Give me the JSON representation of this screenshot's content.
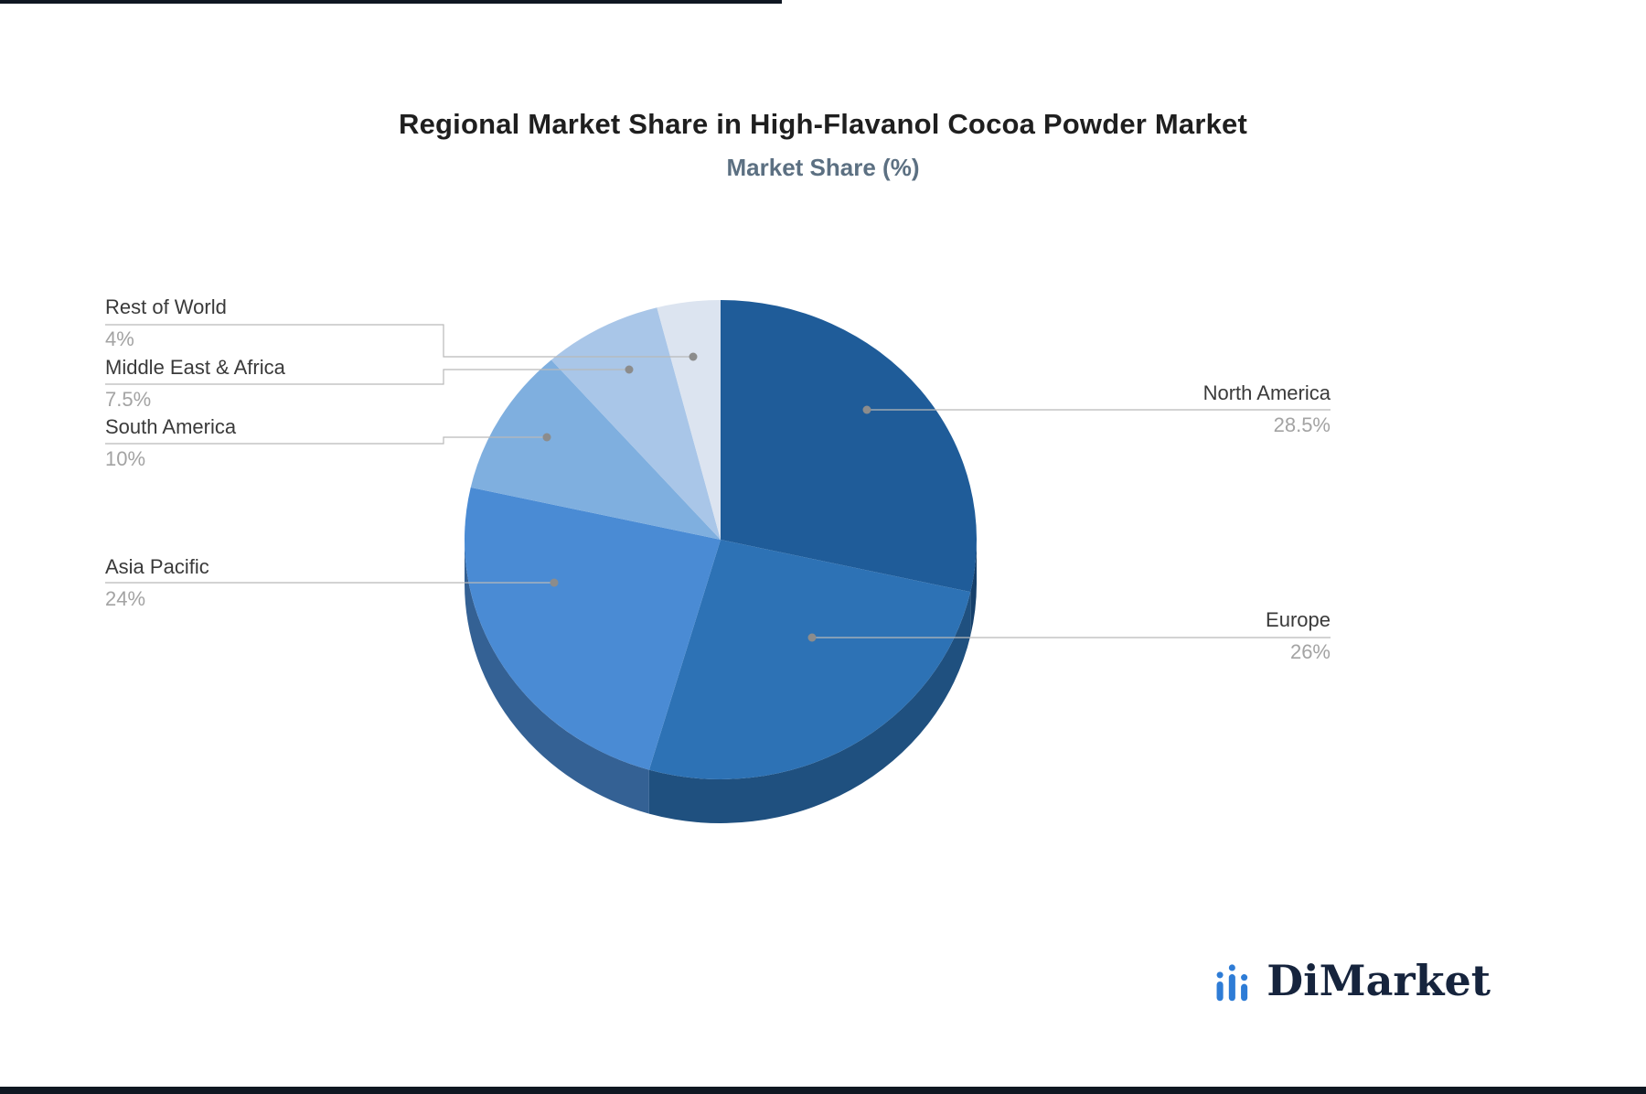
{
  "page": {
    "title": "Regional Market Share in High-Flavanol Cocoa Powder Market",
    "subtitle": "Market Share (%)"
  },
  "brand": {
    "name": "DiMarket",
    "icon": "bar-chart-icon",
    "icon_color": "#2e7cd6",
    "text_color": "#16243d"
  },
  "chart_data": {
    "type": "pie",
    "title": "Regional Market Share in High-Flavanol Cocoa Powder Market",
    "subtitle": "Market Share (%)",
    "unit": "%",
    "direction": "clockwise",
    "start_angle_deg": 0,
    "legend": "none",
    "style": {
      "effect": "3d-depth",
      "leader_line_color": "#b9b9b9",
      "leader_dot_color": "#8c8c8c",
      "name_color": "#3a3a3a",
      "value_color": "#a3a3a3"
    },
    "slices": [
      {
        "label": "North America",
        "value": 28.5,
        "display": "28.5%",
        "color": "#1f5c99"
      },
      {
        "label": "Europe",
        "value": 26,
        "display": "26%",
        "color": "#2d72b5"
      },
      {
        "label": "Asia Pacific",
        "value": 24,
        "display": "24%",
        "color": "#4a8bd4"
      },
      {
        "label": "South America",
        "value": 10,
        "display": "10%",
        "color": "#7fafdf"
      },
      {
        "label": "Middle East & Africa",
        "value": 7.5,
        "display": "7.5%",
        "color": "#a9c6e8"
      },
      {
        "label": "Rest of World",
        "value": 4,
        "display": "4%",
        "color": "#dce4f0"
      }
    ]
  }
}
